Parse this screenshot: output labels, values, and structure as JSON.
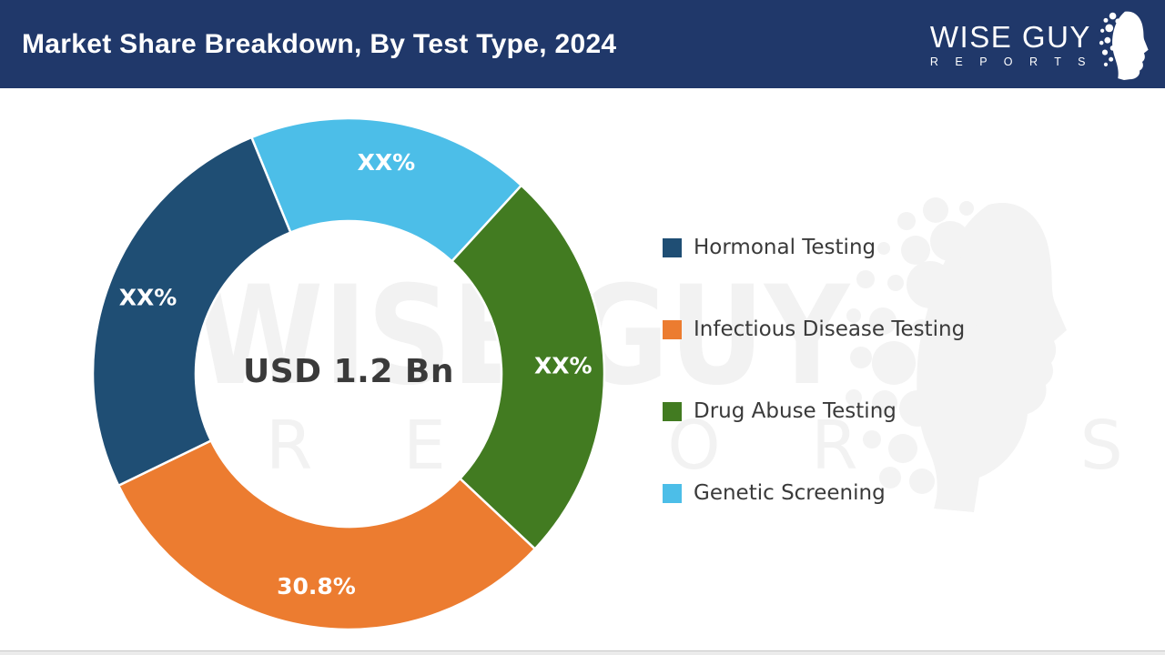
{
  "header": {
    "title": "Market Share Breakdown, By Test Type, 2024",
    "logo": {
      "name": "WISE GUY",
      "subtext": "R E P O R T S"
    }
  },
  "watermark": {
    "line1": "WISE GUY",
    "line2": "R E P O R T S"
  },
  "chart_data": {
    "type": "pie",
    "subtype": "donut",
    "title": "Market Share Breakdown, By Test Type, 2024",
    "center_label": "USD 1.2 Bn",
    "start_angle_deg": -22.3,
    "direction": "clockwise",
    "inner_radius_ratio": 0.6,
    "segments": [
      {
        "name": "Genetic Screening",
        "color": "#4CBEE8",
        "angle_pct": 18.0,
        "data_label": "XX%",
        "value_masked": true
      },
      {
        "name": "Drug Abuse Testing",
        "color": "#427B21",
        "angle_pct": 25.2,
        "data_label": "XX%",
        "value_masked": true
      },
      {
        "name": "Infectious Disease Testing",
        "color": "#EC7C30",
        "angle_pct": 30.8,
        "data_label": "30.8%",
        "value_masked": false
      },
      {
        "name": "Hormonal Testing",
        "color": "#1F4E74",
        "angle_pct": 26.0,
        "data_label": "XX%",
        "value_masked": true
      }
    ],
    "legend": {
      "position": "right",
      "items": [
        {
          "label": "Hormonal Testing",
          "color": "#1F4E74"
        },
        {
          "label": "Infectious Disease Testing",
          "color": "#EC7C30"
        },
        {
          "label": "Drug Abuse Testing",
          "color": "#427B21"
        },
        {
          "label": "Genetic Screening",
          "color": "#4CBEE8"
        }
      ]
    }
  },
  "colors": {
    "header_bg": "#20386A",
    "page_bg": "#FFFFFF",
    "center_text": "#3A3A3A",
    "legend_text": "#3A3A3A",
    "watermark": "#F2F2F2"
  }
}
